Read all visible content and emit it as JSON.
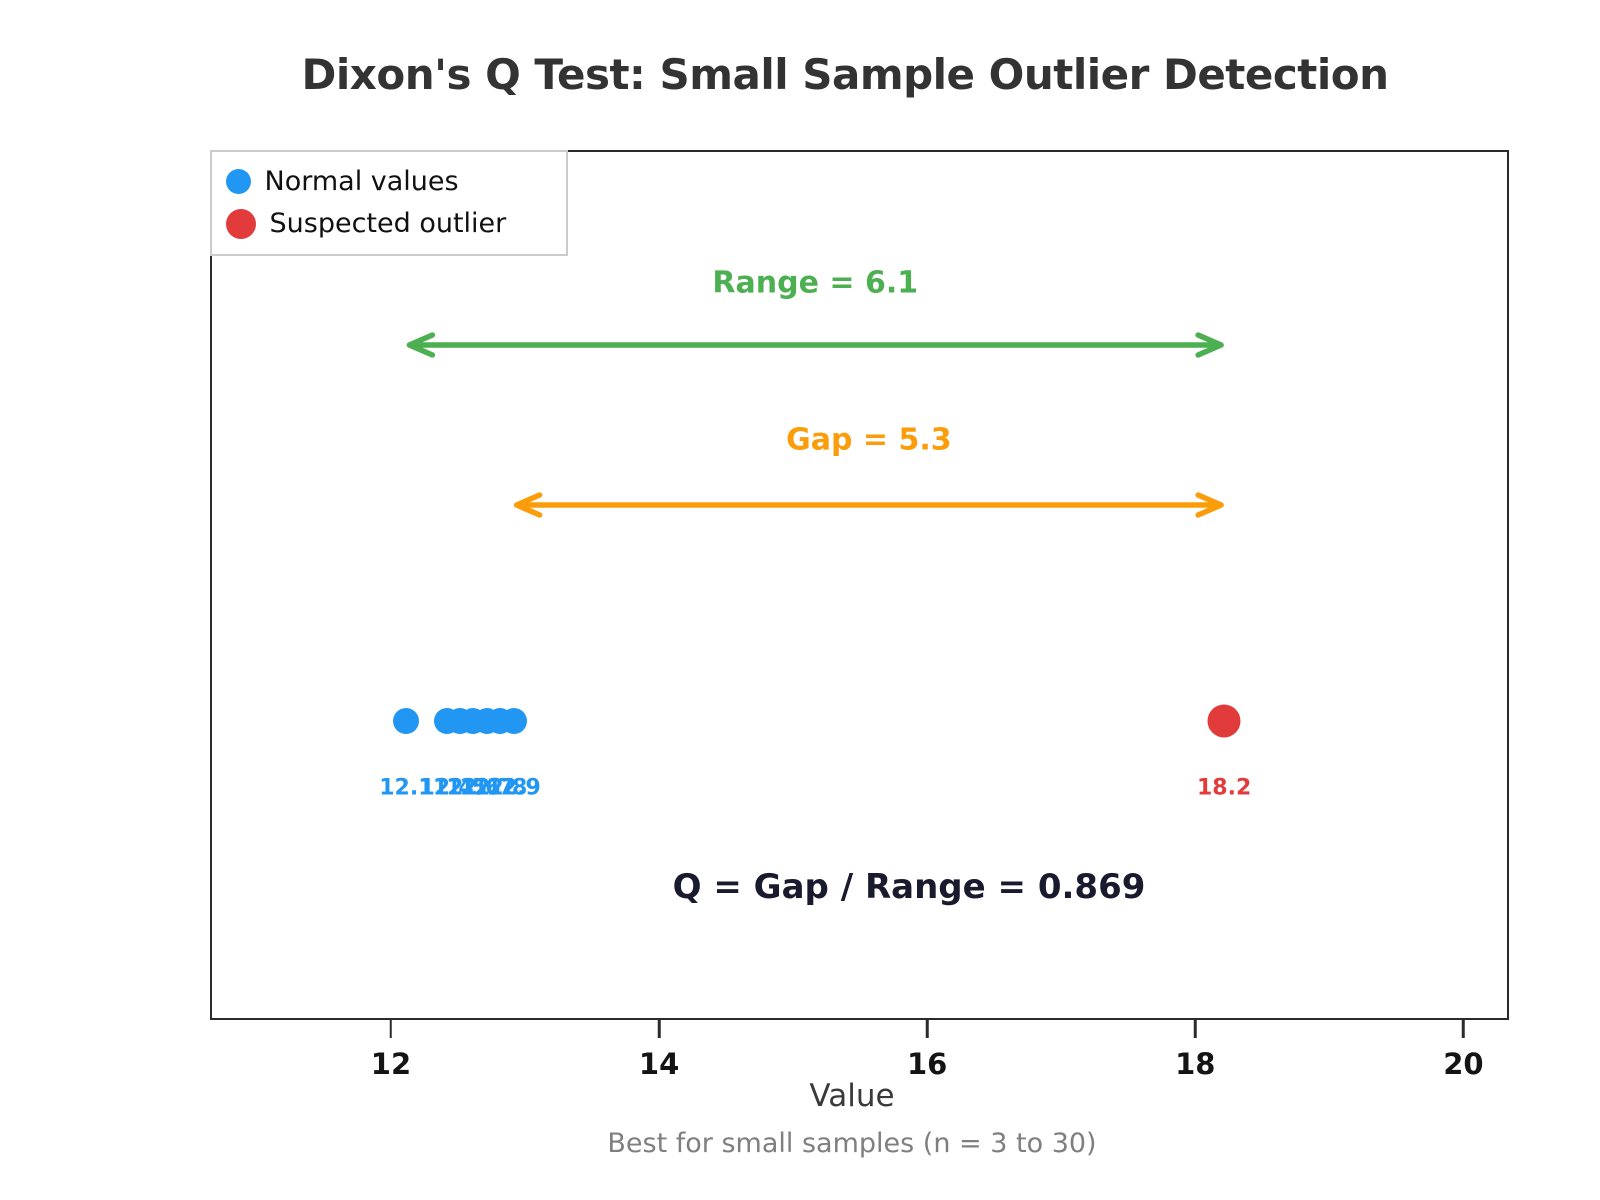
{
  "title": "Dixon's Q Test: Small Sample Outlier Detection",
  "legend": {
    "items": [
      {
        "label": "Normal values",
        "color": "#2196F3",
        "marker_size": 25
      },
      {
        "label": "Suspected outlier",
        "color": "#E23B3C",
        "marker_size": 30
      }
    ]
  },
  "chart_data": {
    "type": "scatter",
    "title": "Dixon's Q Test: Small Sample Outlier Detection",
    "xlabel": "Value",
    "caption": "Best for small samples (n = 3 to 30)",
    "xlim": [
      10.65,
      20.34
    ],
    "x_ticks": [
      12,
      14,
      16,
      18,
      20
    ],
    "normal_values": [
      12.1,
      12.4,
      12.5,
      12.6,
      12.7,
      12.8,
      12.9
    ],
    "outlier_value": 18.2,
    "range": 6.1,
    "gap": 5.3,
    "q_value": 0.869,
    "formula": "Q = Gap / Range = 0.869",
    "colors": {
      "normal": "#2196F3",
      "outlier": "#E23B3C",
      "range": "#4CAF50",
      "gap": "#FB9D0A",
      "formula": "#1a1a2e"
    },
    "annotations": [
      {
        "id": "range",
        "label": "Range = 6.1",
        "from": 12.1,
        "to": 18.2,
        "color": "#4CAF50"
      },
      {
        "id": "gap",
        "label": "Gap = 5.3",
        "from": 12.9,
        "to": 18.2,
        "color": "#FB9D0A"
      }
    ],
    "legend_position": "upper-left",
    "grid": false
  }
}
